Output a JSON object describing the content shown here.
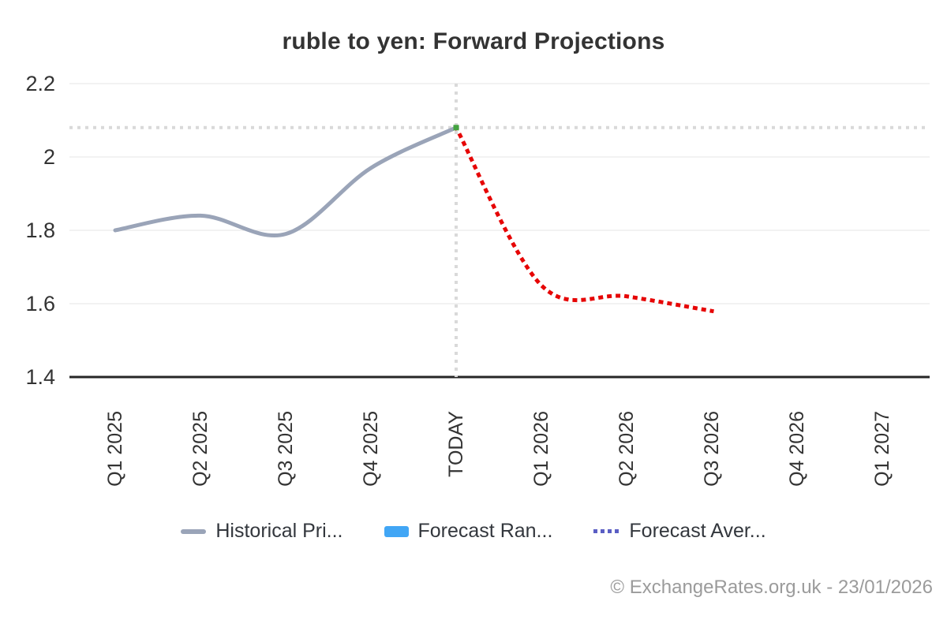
{
  "title": "ruble to yen: Forward Projections",
  "watermark": "© ExchangeRates.org.uk - 23/01/2026",
  "colors": {
    "historical_line": "#9aa4b8",
    "forecast_average_line": "#e60505",
    "forecast_range_swatch": "#41a6f5",
    "forecast_average_swatch": "#5a5ec4",
    "today_marker": "#44a340",
    "gridline": "#e5e5e5",
    "axis_line": "#262626",
    "guide_dotted": "#d9d9d9",
    "text_dark": "#333333",
    "watermark_gray": "#9b9b9b"
  },
  "legend": [
    {
      "label": "Historical Pri...",
      "swatch": "line",
      "color": "#9aa4b8"
    },
    {
      "label": "Forecast Ran...",
      "swatch": "rect",
      "color": "#41a6f5"
    },
    {
      "label": "Forecast Aver...",
      "swatch": "dotted",
      "color": "#5a5ec4"
    }
  ],
  "chart_data": {
    "type": "line",
    "title": "ruble to yen: Forward Projections",
    "categories": [
      "Q1 2025",
      "Q2 2025",
      "Q3 2025",
      "Q4 2025",
      "TODAY",
      "Q1 2026",
      "Q2 2026",
      "Q3 2026",
      "Q4 2026",
      "Q1 2027"
    ],
    "series": [
      {
        "name": "Historical Prices",
        "style": "solid",
        "color": "#9aa4b8",
        "x": [
          "Q1 2025",
          "Q2 2025",
          "Q3 2025",
          "Q4 2025",
          "TODAY"
        ],
        "values": [
          1.8,
          1.84,
          1.79,
          1.97,
          2.08
        ]
      },
      {
        "name": "Forecast Average",
        "style": "dotted",
        "color": "#e60505",
        "x": [
          "TODAY",
          "Q1 2026",
          "Q2 2026",
          "Q3 2026"
        ],
        "values": [
          2.08,
          1.65,
          1.62,
          1.58
        ]
      }
    ],
    "legend_entries": [
      "Historical Pri...",
      "Forecast Ran...",
      "Forecast Aver..."
    ],
    "ylim": [
      1.4,
      2.2
    ],
    "yticks": [
      2.2,
      2.0,
      1.8,
      1.6,
      1.4
    ],
    "ytick_labels": [
      "2.2",
      "2",
      "1.8",
      "1.6",
      "1.4"
    ],
    "xlabel": "",
    "ylabel": "",
    "grid": true,
    "legend_position": "bottom",
    "today_marker": {
      "x": "TODAY",
      "value": 2.08
    },
    "guides": {
      "horizontal_value": 2.08,
      "vertical_x": "TODAY"
    }
  }
}
